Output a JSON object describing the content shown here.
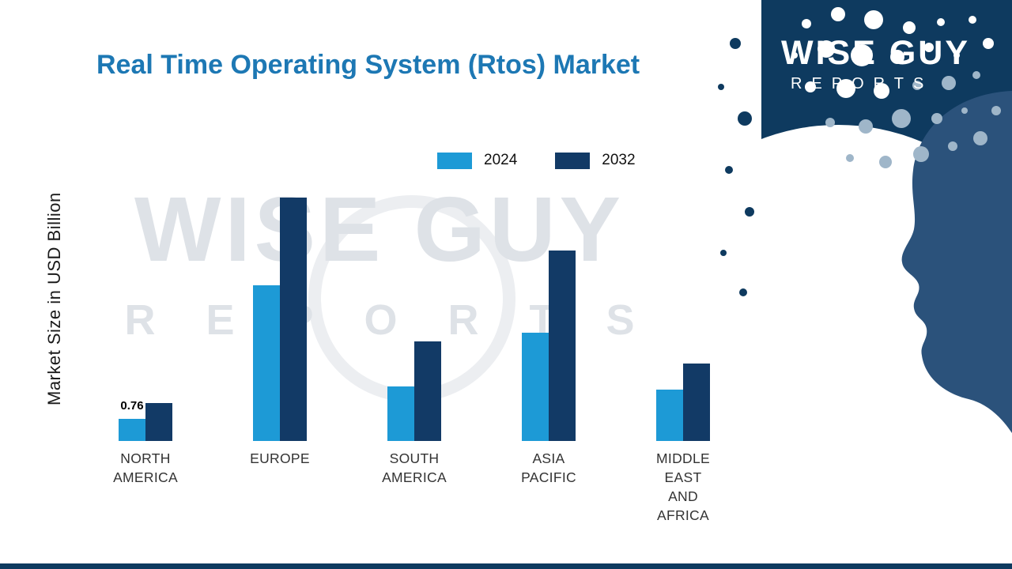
{
  "page": {
    "title": "Real Time Operating System (Rtos) Market"
  },
  "logo": {
    "wise_guy": "WISE GUY",
    "reports": "REPORTS"
  },
  "watermark": {
    "wise_guy": "WISE GUY",
    "reports": "REPORTS"
  },
  "chart_data": {
    "type": "bar",
    "title": "Real Time Operating System (Rtos) Market",
    "ylabel": "Market Size in USD Billion",
    "categories": [
      "NORTH AMERICA",
      "EUROPE",
      "SOUTH AMERICA",
      "ASIA PACIFIC",
      "MIDDLE EAST AND AFRICA"
    ],
    "category_lines": [
      [
        "NORTH",
        "AMERICA"
      ],
      [
        "EUROPE"
      ],
      [
        "SOUTH",
        "AMERICA"
      ],
      [
        "ASIA",
        "PACIFIC"
      ],
      [
        "MIDDLE",
        "EAST",
        "AND",
        "AFRICA"
      ]
    ],
    "series": [
      {
        "name": "2024",
        "color": "#1d9ad6",
        "values": [
          0.76,
          5.3,
          1.85,
          3.7,
          1.75
        ]
      },
      {
        "name": "2032",
        "color": "#123a66",
        "values": [
          1.3,
          8.3,
          3.4,
          6.5,
          2.65
        ]
      }
    ],
    "data_label": {
      "category_index": 0,
      "series_index": 0,
      "text": "0.76"
    },
    "ylim": [
      0,
      9
    ],
    "grid": false,
    "legend_position": "top-center"
  },
  "colors": {
    "title": "#1d78b4",
    "series_2024": "#1d9ad6",
    "series_2032": "#123a66",
    "panel": "#0e3a5f",
    "panel_face": "#2b527b",
    "watermark": "#dee2e7",
    "bottom_bar": "#0e3a5f"
  }
}
